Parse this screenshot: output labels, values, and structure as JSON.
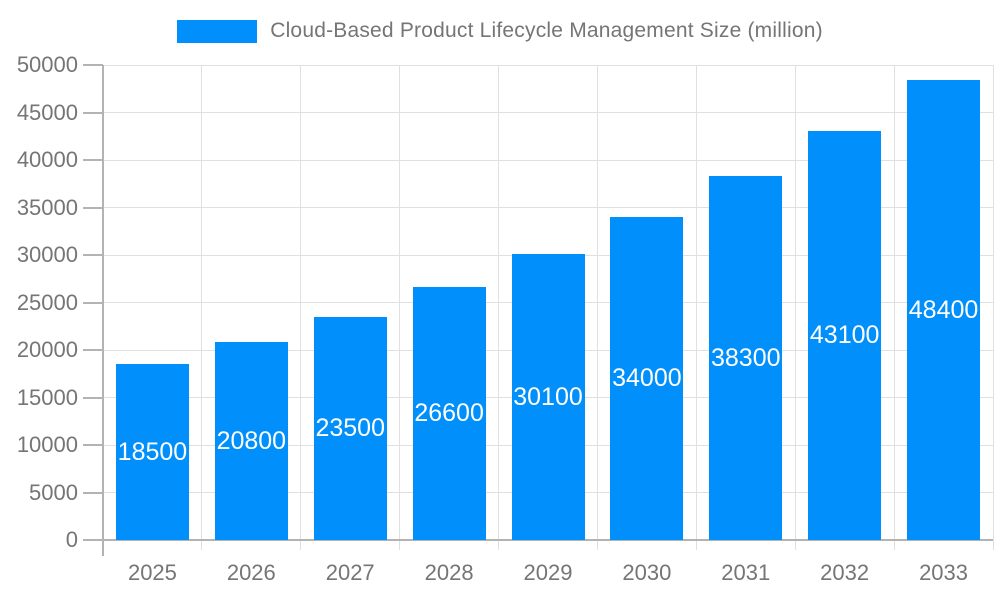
{
  "chart_data": {
    "type": "bar",
    "title": "Cloud-Based Product Lifecycle Management Size (million)",
    "legend_entries": [
      "Cloud-Based Product Lifecycle Management Size (million)"
    ],
    "legend_position": "top",
    "categories": [
      "2025",
      "2026",
      "2027",
      "2028",
      "2029",
      "2030",
      "2031",
      "2032",
      "2033"
    ],
    "series": [
      {
        "name": "Cloud-Based Product Lifecycle Management Size (million)",
        "values": [
          18500,
          20800,
          23500,
          26600,
          30100,
          34000,
          38300,
          43100,
          48400
        ]
      }
    ],
    "bar_value_labels": [
      "18500",
      "20800",
      "23500",
      "26600",
      "30100",
      "34000",
      "38300",
      "43100",
      "48400"
    ],
    "xlabel": "",
    "ylabel": "",
    "ylim": [
      0,
      50000
    ],
    "ytick_step": 5000,
    "y_tick_labels": [
      "0",
      "5000",
      "10000",
      "15000",
      "20000",
      "25000",
      "30000",
      "35000",
      "40000",
      "45000",
      "50000"
    ],
    "grid": true,
    "colors": {
      "bar": "#008FFB",
      "axis_text": "#757575",
      "bar_value_text": "#FFFFFF",
      "gridline": "#E0E0E0",
      "axis_line": "#B3B3B3"
    }
  }
}
